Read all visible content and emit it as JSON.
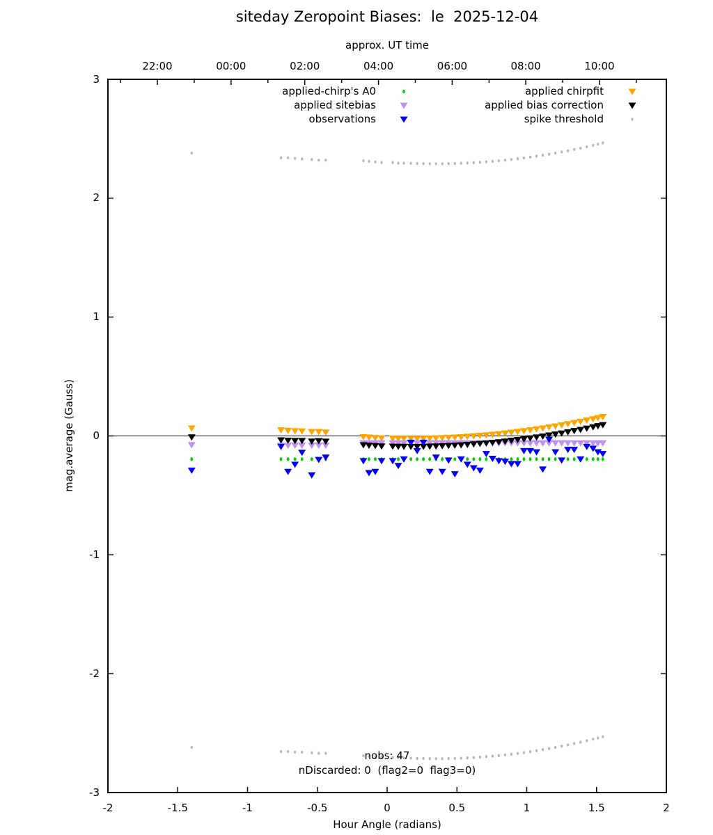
{
  "title": "siteday Zeropoint Biases:  le  2025-12-04",
  "axes": {
    "x2_label": "approx. UT time",
    "x_label": "Hour Angle (radians)",
    "y_label": "mag.average (Gauss)"
  },
  "annotations": {
    "nobs": "nobs: 47",
    "ndiscarded": "nDiscarded: 0  (flag2=0  flag3=0)"
  },
  "chart_data": {
    "type": "scatter",
    "title": "siteday Zeropoint Biases:  le  2025-12-04",
    "xlabel": "Hour Angle (radians)",
    "x2label": "approx. UT time",
    "ylabel": "mag.average (Gauss)",
    "xlim": [
      -2,
      2
    ],
    "ylim": [
      -3,
      3
    ],
    "grid": false,
    "zero_line": true,
    "x_ticks": [
      -2,
      -1.5,
      -1,
      -0.5,
      0,
      0.5,
      1,
      1.5,
      2
    ],
    "y_ticks": [
      -3,
      -2,
      -1,
      0,
      1,
      2,
      3
    ],
    "x2_ticks": [
      {
        "label": "22:00",
        "ha": -1.646
      },
      {
        "label": "00:00",
        "ha": -1.118
      },
      {
        "label": "02:00",
        "ha": -0.59
      },
      {
        "label": "04:00",
        "ha": -0.062
      },
      {
        "label": "06:00",
        "ha": 0.466
      },
      {
        "label": "08:00",
        "ha": 0.993
      },
      {
        "label": "10:00",
        "ha": 1.521
      }
    ],
    "x2_minor_ticks": [
      -1.91,
      -1.382,
      -0.854,
      -0.326,
      0.202,
      0.73,
      1.257,
      1.785
    ],
    "nobs": 47,
    "x": [
      -1.4,
      -0.76,
      -0.71,
      -0.66,
      -0.61,
      -0.54,
      -0.49,
      -0.44,
      -0.17,
      -0.13,
      -0.085,
      -0.04,
      0.04,
      0.08,
      0.12,
      0.17,
      0.215,
      0.26,
      0.305,
      0.35,
      0.395,
      0.44,
      0.485,
      0.53,
      0.575,
      0.62,
      0.665,
      0.71,
      0.755,
      0.8,
      0.845,
      0.89,
      0.935,
      0.98,
      1.025,
      1.07,
      1.115,
      1.16,
      1.205,
      1.25,
      1.295,
      1.34,
      1.385,
      1.43,
      1.475,
      1.51,
      1.545
    ],
    "draw_order": [
      "a0",
      "chirpfit",
      "sitebias",
      "biascorr",
      "obs",
      "spike"
    ],
    "series": {
      "a0": {
        "name": "applied-chirp's A0",
        "marker": "dot",
        "color": "#00CC00",
        "values": [
          -0.195,
          -0.195,
          -0.195,
          -0.195,
          -0.195,
          -0.195,
          -0.195,
          -0.195,
          -0.195,
          -0.195,
          -0.195,
          -0.195,
          -0.195,
          -0.195,
          -0.195,
          -0.195,
          -0.195,
          -0.195,
          -0.195,
          -0.195,
          -0.195,
          -0.195,
          -0.195,
          -0.195,
          -0.195,
          -0.195,
          -0.195,
          -0.195,
          -0.195,
          -0.195,
          -0.195,
          -0.195,
          -0.195,
          -0.195,
          -0.195,
          -0.195,
          -0.195,
          -0.195,
          -0.195,
          -0.195,
          -0.195,
          -0.195,
          -0.195,
          -0.195,
          -0.195,
          -0.195,
          -0.195
        ]
      },
      "chirpfit": {
        "name": "applied chirpfit",
        "marker": "triangle-down",
        "color": "#FFA500",
        "values": [
          0.065,
          0.05,
          0.045,
          0.042,
          0.04,
          0.035,
          0.035,
          0.03,
          -0.008,
          -0.012,
          -0.015,
          -0.018,
          -0.02,
          -0.021,
          -0.021,
          -0.022,
          -0.022,
          -0.021,
          -0.02,
          -0.018,
          -0.016,
          -0.014,
          -0.012,
          -0.009,
          -0.005,
          -0.001,
          0.003,
          0.007,
          0.012,
          0.017,
          0.023,
          0.029,
          0.036,
          0.042,
          0.05,
          0.057,
          0.065,
          0.074,
          0.082,
          0.091,
          0.101,
          0.111,
          0.121,
          0.132,
          0.143,
          0.152,
          0.161
        ]
      },
      "sitebias": {
        "name": "applied sitebias",
        "marker": "triangle-down",
        "color": "#BE90F0",
        "values": [
          -0.075,
          -0.08,
          -0.08,
          -0.08,
          -0.08,
          -0.08,
          -0.08,
          -0.08,
          -0.06,
          -0.06,
          -0.06,
          -0.06,
          -0.06,
          -0.06,
          -0.06,
          -0.06,
          -0.06,
          -0.06,
          -0.06,
          -0.06,
          -0.06,
          -0.06,
          -0.06,
          -0.06,
          -0.06,
          -0.06,
          -0.06,
          -0.06,
          -0.06,
          -0.06,
          -0.06,
          -0.06,
          -0.06,
          -0.06,
          -0.06,
          -0.06,
          -0.06,
          -0.06,
          -0.06,
          -0.06,
          -0.06,
          -0.06,
          -0.06,
          -0.06,
          -0.06,
          -0.06,
          -0.06
        ]
      },
      "biascorr": {
        "name": "applied bias correction",
        "marker": "triangle-down",
        "color": "#000000",
        "values": [
          -0.01,
          -0.035,
          -0.038,
          -0.04,
          -0.04,
          -0.045,
          -0.042,
          -0.046,
          -0.076,
          -0.08,
          -0.083,
          -0.086,
          -0.088,
          -0.089,
          -0.089,
          -0.09,
          -0.09,
          -0.089,
          -0.088,
          -0.086,
          -0.084,
          -0.082,
          -0.08,
          -0.077,
          -0.073,
          -0.069,
          -0.065,
          -0.061,
          -0.056,
          -0.051,
          -0.045,
          -0.039,
          -0.032,
          -0.026,
          -0.018,
          -0.011,
          -0.003,
          0.006,
          0.014,
          0.023,
          0.033,
          0.043,
          0.053,
          0.064,
          0.075,
          0.084,
          0.093
        ]
      },
      "obs": {
        "name": "observations",
        "marker": "triangle-down",
        "color": "#0000EE",
        "values": [
          -0.29,
          -0.09,
          -0.3,
          -0.24,
          -0.14,
          -0.33,
          -0.2,
          -0.18,
          -0.21,
          -0.31,
          -0.3,
          -0.21,
          -0.21,
          -0.25,
          -0.195,
          -0.055,
          -0.125,
          -0.055,
          -0.3,
          -0.18,
          -0.3,
          -0.205,
          -0.32,
          -0.195,
          -0.24,
          -0.27,
          -0.29,
          -0.15,
          -0.19,
          -0.21,
          -0.215,
          -0.235,
          -0.235,
          -0.125,
          -0.125,
          -0.135,
          -0.28,
          -0.03,
          -0.135,
          -0.205,
          -0.115,
          -0.115,
          -0.195,
          -0.09,
          -0.105,
          -0.135,
          -0.15
        ]
      },
      "spike": {
        "name": "spike threshold",
        "marker": "dot-small",
        "color": "#B5B5B5",
        "upper": [
          2.38,
          2.34,
          2.34,
          2.335,
          2.33,
          2.325,
          2.32,
          2.32,
          2.315,
          2.31,
          2.305,
          2.3,
          2.3,
          2.295,
          2.295,
          2.294,
          2.292,
          2.291,
          2.29,
          2.29,
          2.29,
          2.291,
          2.292,
          2.294,
          2.296,
          2.299,
          2.302,
          2.306,
          2.31,
          2.315,
          2.32,
          2.326,
          2.332,
          2.339,
          2.346,
          2.354,
          2.362,
          2.37,
          2.38,
          2.389,
          2.399,
          2.41,
          2.421,
          2.432,
          2.445,
          2.455,
          2.465
        ],
        "lower": [
          -2.62,
          -2.655,
          -2.655,
          -2.66,
          -2.66,
          -2.665,
          -2.67,
          -2.67,
          -2.69,
          -2.695,
          -2.7,
          -2.7,
          -2.705,
          -2.705,
          -2.71,
          -2.711,
          -2.713,
          -2.714,
          -2.715,
          -2.715,
          -2.715,
          -2.714,
          -2.713,
          -2.711,
          -2.708,
          -2.706,
          -2.702,
          -2.698,
          -2.694,
          -2.689,
          -2.683,
          -2.677,
          -2.671,
          -2.664,
          -2.656,
          -2.648,
          -2.639,
          -2.63,
          -2.62,
          -2.61,
          -2.599,
          -2.588,
          -2.576,
          -2.564,
          -2.551,
          -2.541,
          -2.53
        ]
      }
    },
    "legend_items": [
      {
        "key": "a0",
        "label": "applied-chirp's A0",
        "col": "left",
        "row": 0
      },
      {
        "key": "chirpfit",
        "label": "applied chirpfit",
        "col": "right",
        "row": 0
      },
      {
        "key": "sitebias",
        "label": "applied sitebias",
        "col": "left",
        "row": 1
      },
      {
        "key": "biascorr",
        "label": "applied bias correction",
        "col": "right",
        "row": 1
      },
      {
        "key": "obs",
        "label": "observations",
        "col": "left",
        "row": 2
      },
      {
        "key": "spike",
        "label": "spike threshold",
        "col": "right",
        "row": 2
      }
    ]
  }
}
